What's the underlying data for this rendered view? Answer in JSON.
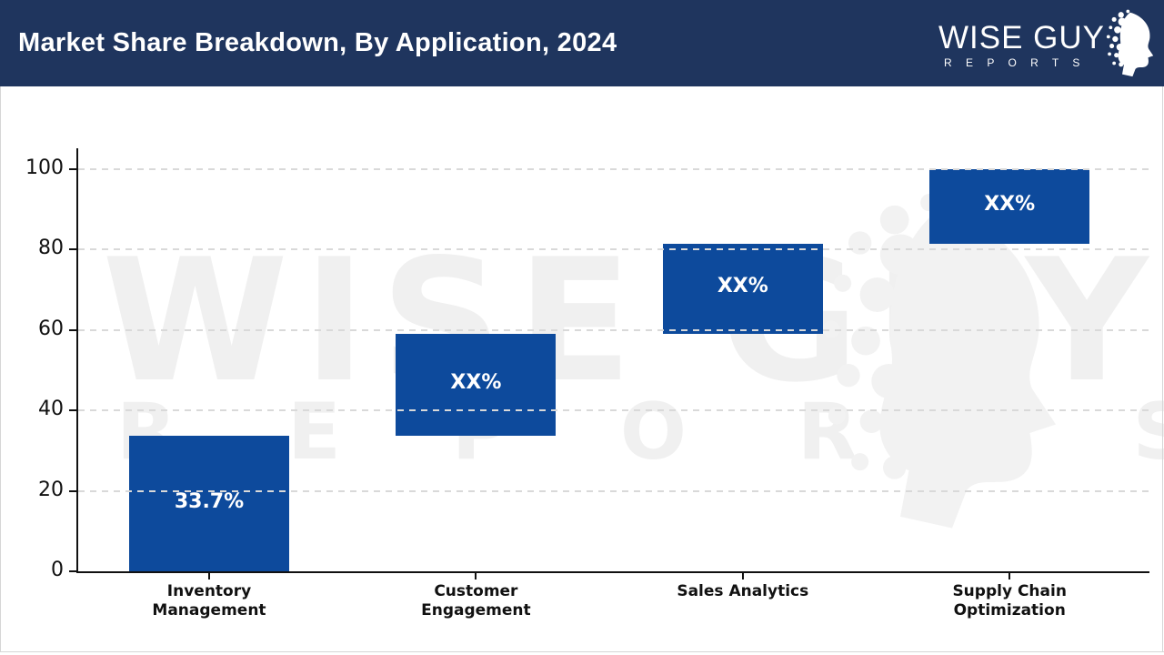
{
  "header": {
    "title": "Market Share Breakdown, By Application, 2024",
    "bg_color": "#1f355e",
    "logo": {
      "brand": "WISE GUY",
      "sub": "R E P O R T S",
      "head_icon": "dotted-head-profile"
    }
  },
  "watermark": {
    "line1": "WISE GUY",
    "line2": "R E P O R T S",
    "head_icon": "dotted-head-profile",
    "color": "#f0f0f0"
  },
  "chart_data": {
    "type": "bar",
    "variant": "floating-waterfall",
    "title": "Market Share Breakdown, By Application, 2024",
    "categories": [
      "Inventory\nManagement",
      "Customer\nEngagement",
      "Sales Analytics",
      "Supply Chain\nOptimization"
    ],
    "segments": [
      {
        "category": "Inventory Management",
        "start": 0,
        "end": 33.7,
        "label": "33.7%"
      },
      {
        "category": "Customer Engagement",
        "start": 33.7,
        "end": 59.1,
        "label": "XX%"
      },
      {
        "category": "Sales Analytics",
        "start": 59.1,
        "end": 81.4,
        "label": "XX%"
      },
      {
        "category": "Supply Chain Optimization",
        "start": 81.4,
        "end": 100,
        "label": "XX%"
      }
    ],
    "increments": [
      33.7,
      25.4,
      22.3,
      18.6
    ],
    "ylim": [
      0,
      100
    ],
    "yticks": [
      0,
      20,
      40,
      60,
      80,
      100
    ],
    "xlabel": "",
    "ylabel": "",
    "legend": "none",
    "grid": {
      "axis": "y",
      "style": "dashed",
      "color": "#d9d9d9"
    },
    "bar_color": "#0d4a9c",
    "bar_label_color": "#ffffff",
    "axis_color": "#111111"
  }
}
